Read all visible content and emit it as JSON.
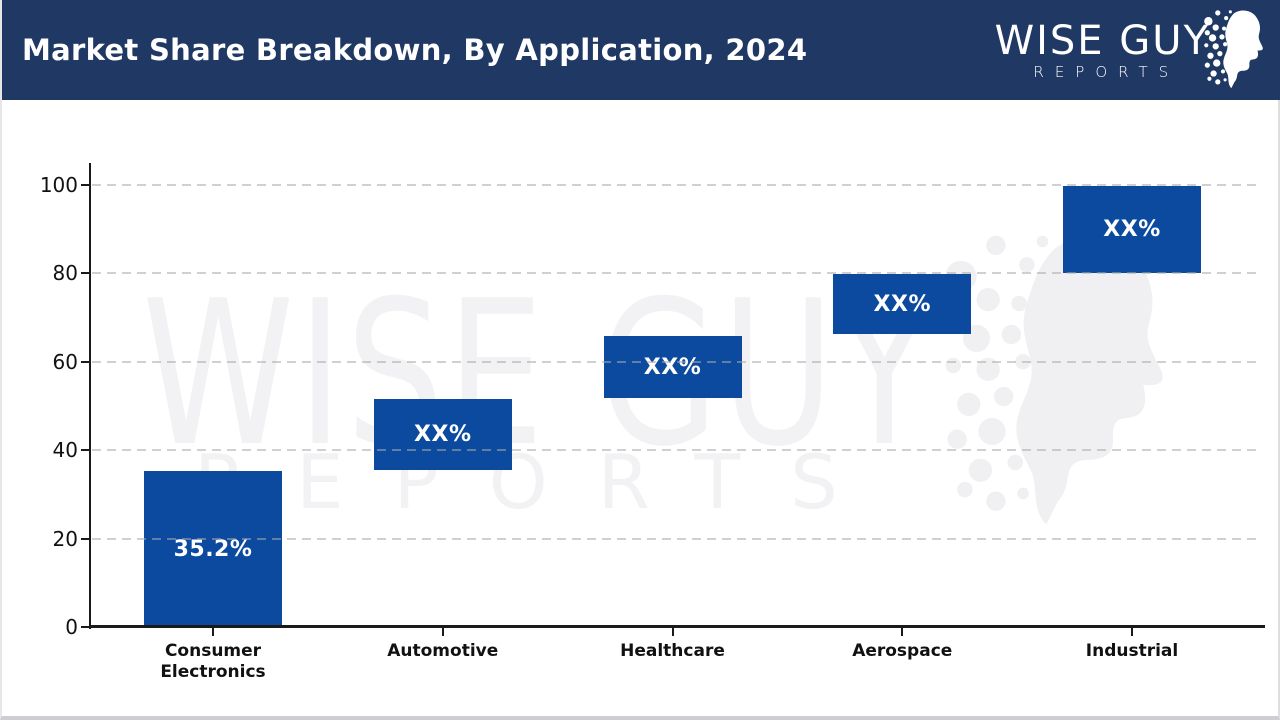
{
  "header": {
    "title": "Market Share Breakdown, By Application, 2024",
    "bg_color": "#1f3864",
    "logo": {
      "wordmark": "WISE GUY",
      "subtitle": "REPORTS"
    }
  },
  "watermark": {
    "wordmark": "WISE GUY",
    "subtitle": "REPORTS"
  },
  "chart_data": {
    "type": "bar",
    "subtype": "waterfall",
    "title": "Market Share Breakdown, By Application, 2024",
    "categories": [
      "Consumer Electronics",
      "Automotive",
      "Healthcare",
      "Aerospace",
      "Industrial"
    ],
    "segments": [
      {
        "category": "Consumer Electronics",
        "start": 0,
        "end": 35.2,
        "label": "35.2%"
      },
      {
        "category": "Automotive",
        "start": 35.4,
        "end": 51.6,
        "label": "XX%"
      },
      {
        "category": "Healthcare",
        "start": 51.8,
        "end": 65.7,
        "label": "XX%"
      },
      {
        "category": "Aerospace",
        "start": 66.1,
        "end": 79.8,
        "label": "XX%"
      },
      {
        "category": "Industrial",
        "start": 79.9,
        "end": 99.6,
        "label": "XX%"
      }
    ],
    "y_ticks": [
      0,
      20,
      40,
      60,
      80,
      100
    ],
    "ylim": [
      0,
      105
    ],
    "xlabel": "",
    "ylabel": "",
    "grid": "horizontal-dashed",
    "legend": "none",
    "bar_color": "#0b4a9e",
    "bar_label_color": "#ffffff",
    "gridline_color": "#d3d3d3",
    "axis_color": "#1a1a1a"
  }
}
